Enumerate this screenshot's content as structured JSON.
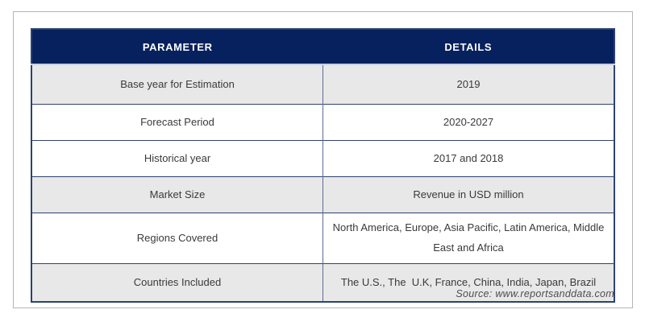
{
  "chart_data": {
    "type": "table",
    "title": "",
    "columns": [
      "PARAMETER",
      "DETAILS"
    ],
    "rows": [
      {
        "parameter": "Base year for Estimation",
        "details": "2019",
        "shaded": true
      },
      {
        "parameter": "Forecast Period",
        "details": "2020-2027",
        "shaded": false
      },
      {
        "parameter": "Historical year",
        "details": "2017 and 2018",
        "shaded": false
      },
      {
        "parameter": "Market Size",
        "details": "Revenue in USD million",
        "shaded": true
      },
      {
        "parameter": "Regions Covered",
        "details": "North America, Europe, Asia Pacific, Latin America, Middle East and Africa",
        "shaded": false
      },
      {
        "parameter": "Countries Included",
        "details": "The U.S., The  U.K, France, China, India, Japan, Brazil",
        "shaded": true
      }
    ],
    "source": "Source: www.reportsanddata.com",
    "legend_position": "none",
    "grid": "table-borders"
  },
  "colors": {
    "header_bg": "#06215e",
    "header_text": "#ffffff",
    "row_shaded_bg": "#e8e8e8",
    "row_plain_bg": "#ffffff",
    "table_border": "#2e4270",
    "column_divider": "#5b6b92",
    "header_separator": "#c8d1e3",
    "frame_border": "#b5b5b5",
    "cell_text": "#3a3a3a",
    "source_text": "#4d4d4d"
  }
}
